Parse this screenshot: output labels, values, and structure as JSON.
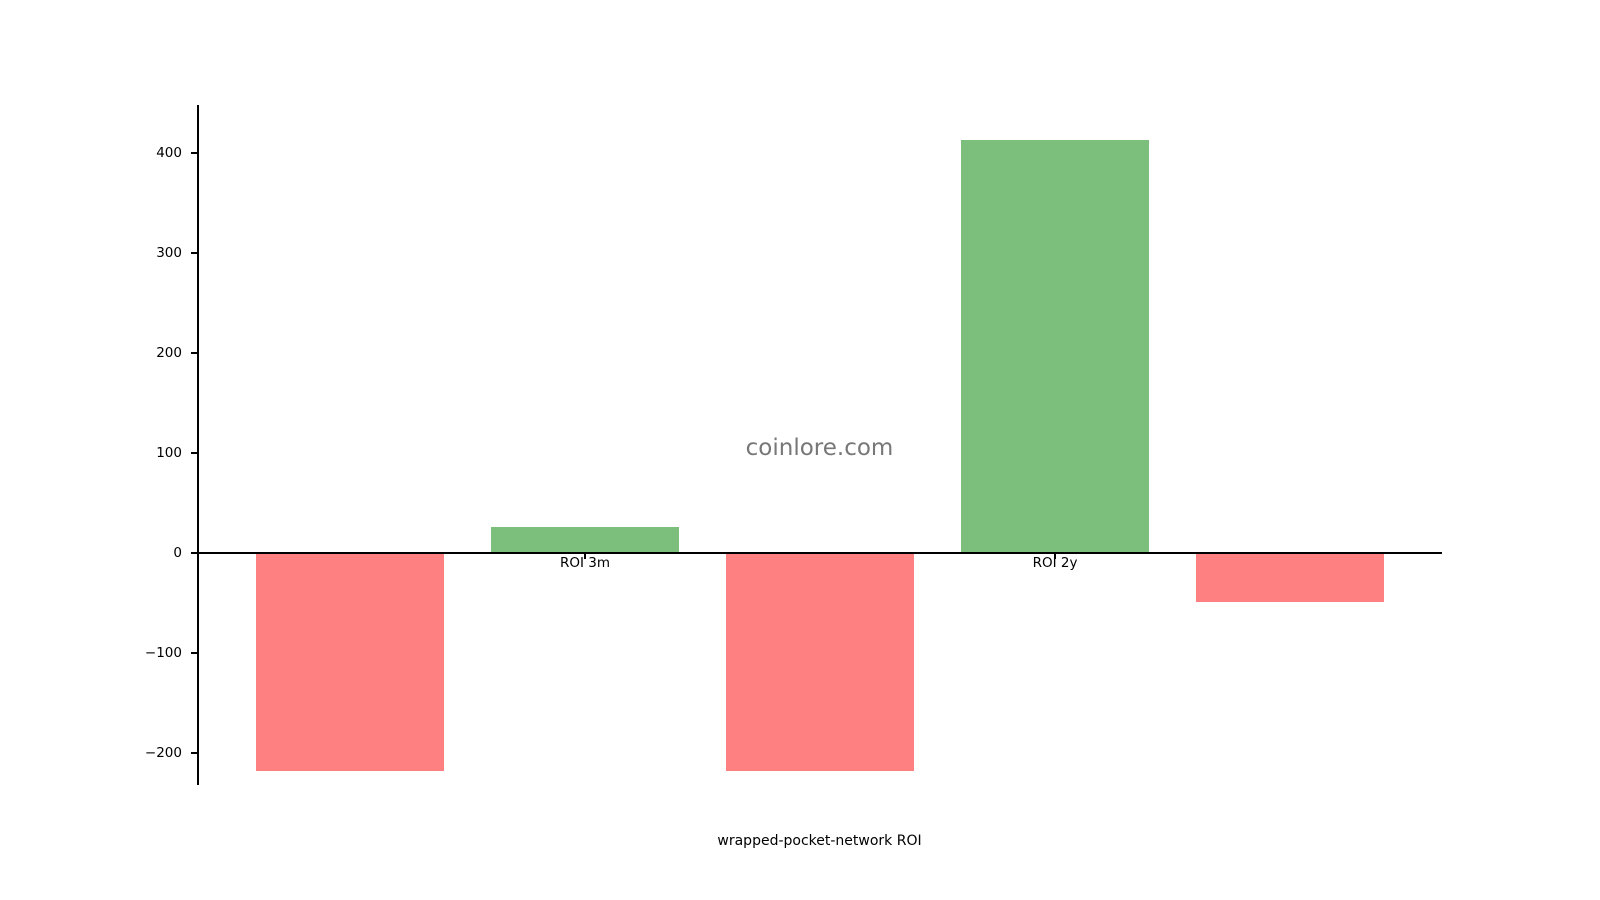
{
  "chart_data": {
    "type": "bar",
    "title": "wrapped-pocket-network ROI",
    "watermark": "coinlore.com",
    "categories": [
      "",
      "ROI 3m",
      "",
      "ROI 2y",
      ""
    ],
    "values": [
      -218,
      26,
      -218,
      413,
      -49
    ],
    "colors": {
      "positive": "#7cbf7c",
      "negative": "#ff8080",
      "axis": "#000000",
      "watermark": "#777777"
    },
    "yticks": [
      400,
      300,
      200,
      100,
      0,
      -100,
      -200
    ],
    "ylim": [
      -232,
      448
    ],
    "xlabel": "",
    "ylabel": "",
    "grid": false,
    "legend": null
  }
}
